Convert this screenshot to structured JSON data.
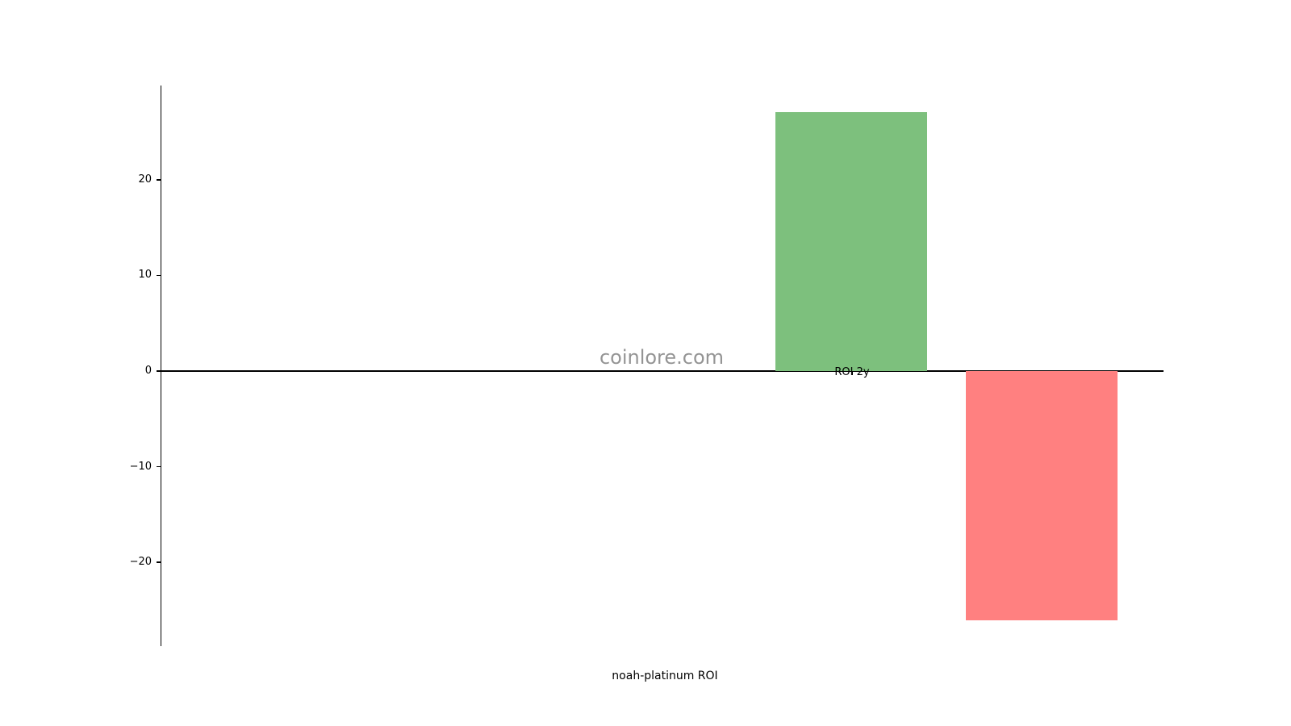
{
  "watermark": {
    "text": "coinlore.com",
    "color": "#949494"
  },
  "chart_data": {
    "type": "bar",
    "title": "",
    "xlabel": "noah-platinum ROI",
    "ylabel": "",
    "categories": [
      "ROI 2y",
      ""
    ],
    "values": [
      27.1,
      -26.1
    ],
    "bar_colors": [
      "#7dc07d",
      "#ff8080"
    ],
    "positive_color": "#7dc07d",
    "negative_color": "#ff8080",
    "xtick_visible_label": "ROI 2y",
    "yticks": [
      20,
      10,
      0,
      -10,
      -20
    ],
    "ytick_labels": [
      "20",
      "10",
      "0",
      "−10",
      "−20"
    ],
    "ylim": [
      -28.8,
      29.9
    ],
    "grid": false,
    "legend": false,
    "baseline": 0
  }
}
